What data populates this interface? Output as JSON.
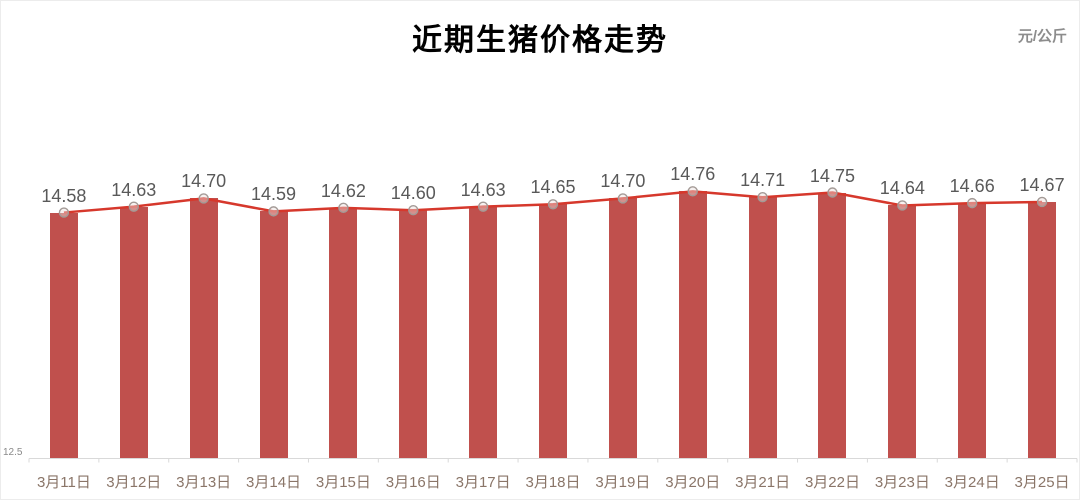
{
  "header": {
    "title": "近期生猪价格走势",
    "unit_label": "元/公斤"
  },
  "chart_data": {
    "type": "bar",
    "overlay": "line-with-markers",
    "title": "近期生猪价格走势",
    "ylabel": "元/公斤",
    "xlabel": "",
    "categories": [
      "3月11日",
      "3月12日",
      "3月13日",
      "3月14日",
      "3月15日",
      "3月16日",
      "3月17日",
      "3月18日",
      "3月19日",
      "3月20日",
      "3月21日",
      "3月22日",
      "3月23日",
      "3月24日",
      "3月25日"
    ],
    "values": [
      14.58,
      14.63,
      14.7,
      14.59,
      14.62,
      14.6,
      14.63,
      14.65,
      14.7,
      14.76,
      14.71,
      14.75,
      14.64,
      14.66,
      14.67
    ],
    "value_decimals": 2,
    "ylim": [
      12.5,
      15.0
    ],
    "y_axis_labels_visible": [
      "12.5"
    ],
    "grid": false,
    "legend": false,
    "colors": {
      "bar": "#c0504d",
      "line": "#d6382c",
      "marker_stroke": "#a39a96",
      "marker_fill": "rgba(235,224,222,0.45)",
      "value_label": "#595959",
      "x_axis_label": "#8a7568",
      "axis_line": "#d9d9d9",
      "title": "#000000",
      "unit": "#8c8c8c"
    }
  }
}
